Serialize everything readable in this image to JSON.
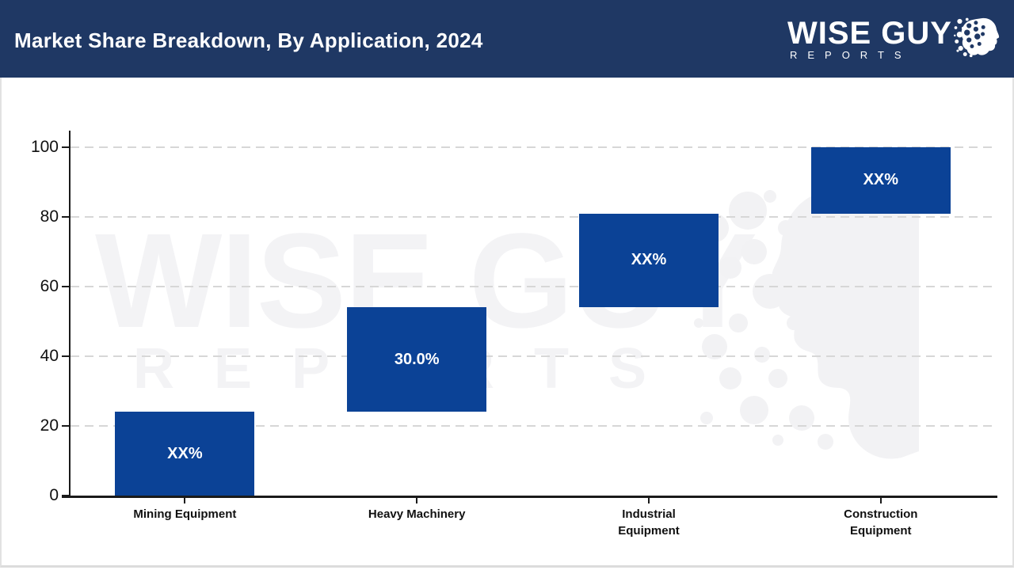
{
  "header": {
    "title": "Market Share Breakdown, By Application, 2024",
    "brand": {
      "line1": "WISE GUY",
      "line2": "REPORTS"
    }
  },
  "watermark": {
    "line1": "WISE GUY",
    "line2": "REPORTS"
  },
  "colors": {
    "header_bg": "#1f3864",
    "bar": "#0b4296",
    "bar_label": "#ffffff",
    "grid": "#d7d7d7",
    "axis": "#1a1a1a",
    "watermark": "#f3f3f5"
  },
  "chart_data": {
    "type": "bar",
    "subtype": "waterfall",
    "title": "Market Share Breakdown, By Application, 2024",
    "categories": [
      "Mining Equipment",
      "Heavy Machinery",
      "Industrial Equipment",
      "Construction Equipment"
    ],
    "categories_display": [
      [
        "Mining Equipment"
      ],
      [
        "Heavy Machinery"
      ],
      [
        "Industrial",
        "Equipment"
      ],
      [
        "Construction",
        "Equipment"
      ]
    ],
    "segments": [
      {
        "category": "Mining Equipment",
        "start": 0,
        "end": 24,
        "value": 24,
        "label": "XX%"
      },
      {
        "category": "Heavy Machinery",
        "start": 24,
        "end": 54,
        "value": 30,
        "label": "30.0%"
      },
      {
        "category": "Industrial Equipment",
        "start": 54,
        "end": 81,
        "value": 27,
        "label": "XX%"
      },
      {
        "category": "Construction Equipment",
        "start": 81,
        "end": 100,
        "value": 19,
        "label": "XX%"
      }
    ],
    "ylim": [
      0,
      100
    ],
    "yticks": [
      0,
      20,
      40,
      60,
      80,
      100
    ],
    "xlabel": "",
    "ylabel": "",
    "grid": "dashed-horizontal",
    "legend": null
  }
}
